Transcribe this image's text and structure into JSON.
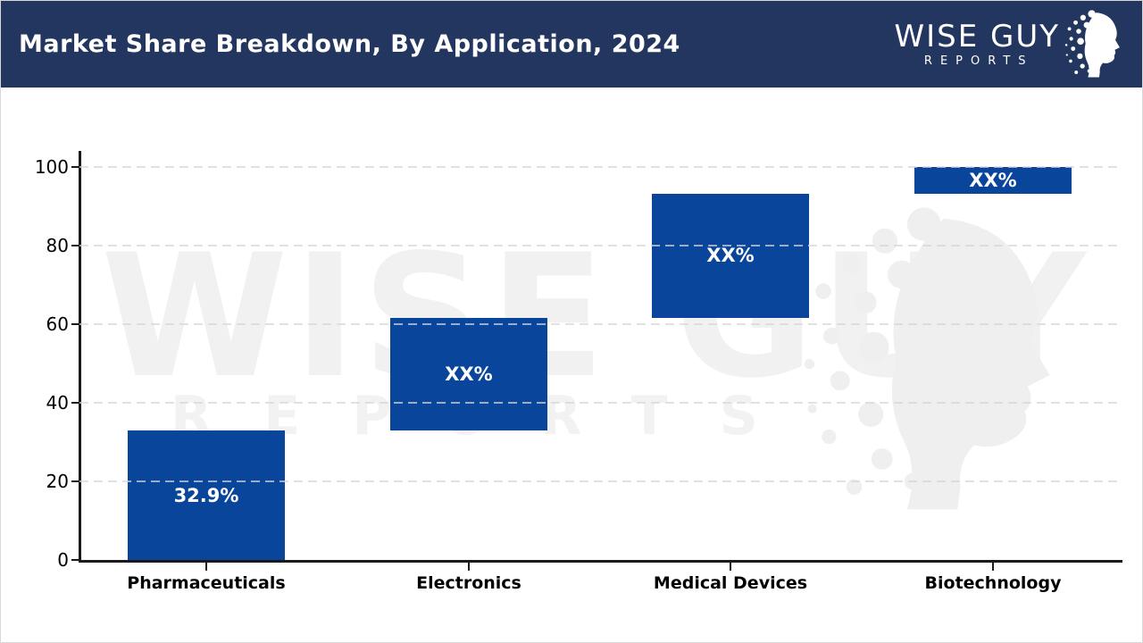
{
  "header": {
    "title": "Market Share Breakdown, By Application, 2024",
    "bg_color": "#22365f",
    "logo": {
      "line1": "WISE GUY",
      "line2": "REPORTS"
    }
  },
  "watermark": {
    "line1": "WISE GUY",
    "line2": "REPORTS",
    "color": "#f1f1f1"
  },
  "chart_data": {
    "type": "bar",
    "subtype": "waterfall",
    "title": "Market Share Breakdown, By Application, 2024",
    "categories": [
      "Pharmaceuticals",
      "Electronics",
      "Medical Devices",
      "Biotechnology"
    ],
    "segments": [
      {
        "category": "Pharmaceuticals",
        "start": 0,
        "end": 32.9,
        "label": "32.9%"
      },
      {
        "category": "Electronics",
        "start": 32.9,
        "end": 61.6,
        "label": "XX%"
      },
      {
        "category": "Medical Devices",
        "start": 61.6,
        "end": 93.2,
        "label": "XX%"
      },
      {
        "category": "Biotechnology",
        "start": 93.2,
        "end": 100,
        "label": "XX%"
      }
    ],
    "yticks": [
      0,
      20,
      40,
      60,
      80,
      100
    ],
    "ylim": [
      0,
      105
    ],
    "xlabel": "",
    "ylabel": "",
    "legend": "none",
    "grid": "horizontal-dashed",
    "bar_color": "#0a459c",
    "axis_color": "#1a1a1a",
    "value_label_color": "#ffffff"
  }
}
